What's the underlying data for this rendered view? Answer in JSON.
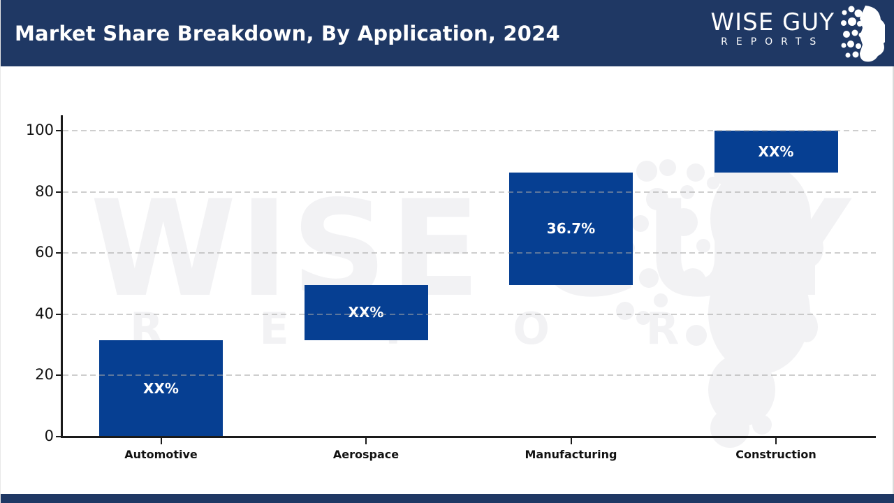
{
  "header": {
    "title": "Market Share Breakdown, By Application, 2024",
    "bg_color": "#1f3864",
    "logo": {
      "line1": "WISE GUY",
      "line2": "REPORTS",
      "head_icon": "dotted-head-profile"
    }
  },
  "watermark": {
    "line1": "WISE GUY",
    "line2": "R E P O R T S",
    "head_icon": "dotted-head-profile",
    "color": "#f2f2f4"
  },
  "footer": {
    "bg_color": "#1f3864"
  },
  "chart_data": {
    "type": "bar",
    "subtype": "floating-waterfall",
    "title": "Market Share Breakdown, By Application, 2024",
    "xlabel": "",
    "ylabel": "",
    "categories": [
      "Automotive",
      "Aerospace",
      "Manufacturing",
      "Construction"
    ],
    "segments": [
      {
        "category": "Automotive",
        "start": 0,
        "end": 31.4,
        "label": "XX%"
      },
      {
        "category": "Aerospace",
        "start": 31.4,
        "end": 49.6,
        "label": "XX%"
      },
      {
        "category": "Manufacturing",
        "start": 49.6,
        "end": 86.3,
        "label": "36.7%"
      },
      {
        "category": "Construction",
        "start": 86.3,
        "end": 100,
        "label": "XX%"
      }
    ],
    "yticks": [
      0,
      20,
      40,
      60,
      80,
      100
    ],
    "ylim": [
      0,
      105
    ],
    "grid": "horizontal-dashed",
    "legend": "none",
    "bar_color": "#063f92",
    "bar_label_color": "#ffffff",
    "axis_color": "#1a1a1a",
    "grid_color": "#a5a5a5"
  }
}
